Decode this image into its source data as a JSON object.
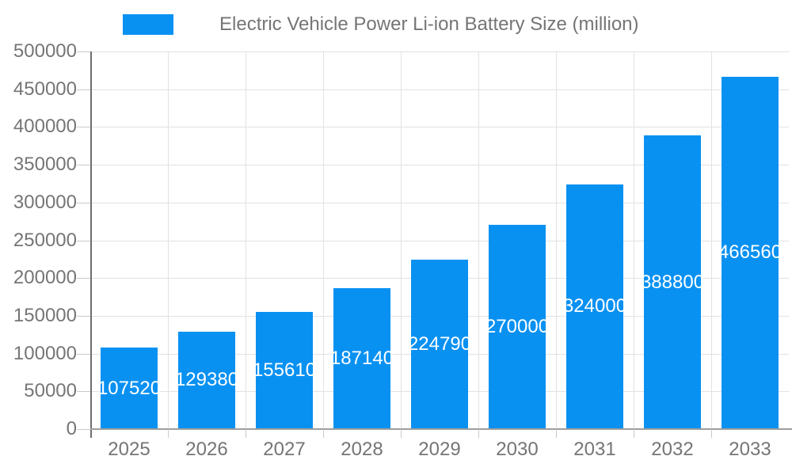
{
  "chart_data": {
    "type": "bar",
    "title": "Electric Vehicle Power Li-ion Battery Size (million)",
    "series_name": "Electric Vehicle Power Li-ion Battery Size (million)",
    "categories": [
      "2025",
      "2026",
      "2027",
      "2028",
      "2029",
      "2030",
      "2031",
      "2032",
      "2033"
    ],
    "values": [
      107520,
      129380,
      155610,
      187140,
      224790,
      270000,
      324000,
      388800,
      466560
    ],
    "bar_labels": [
      "107520",
      "129380",
      "155610",
      "187140",
      "224790",
      "270000",
      "324000",
      "388800",
      "466560"
    ],
    "xlabel": "",
    "ylabel": "",
    "ylim": [
      0,
      500000
    ],
    "y_ticks": [
      0,
      50000,
      100000,
      150000,
      200000,
      250000,
      300000,
      350000,
      400000,
      450000,
      500000
    ],
    "grid": true,
    "legend_position": "top"
  },
  "legend": {
    "label": "Electric Vehicle Power Li-ion Battery Size (million)"
  },
  "style": {
    "bar_color": "#0991F2",
    "bar_label_color": "#FFFFFF",
    "text_color": "#757575",
    "gridline_color": "#E2E2E2",
    "tick_color": "#C9C9C9",
    "x_axis_color": "#9E9E9E",
    "y_axis_color": "#6E6E6E",
    "background": "#FFFFFF"
  }
}
